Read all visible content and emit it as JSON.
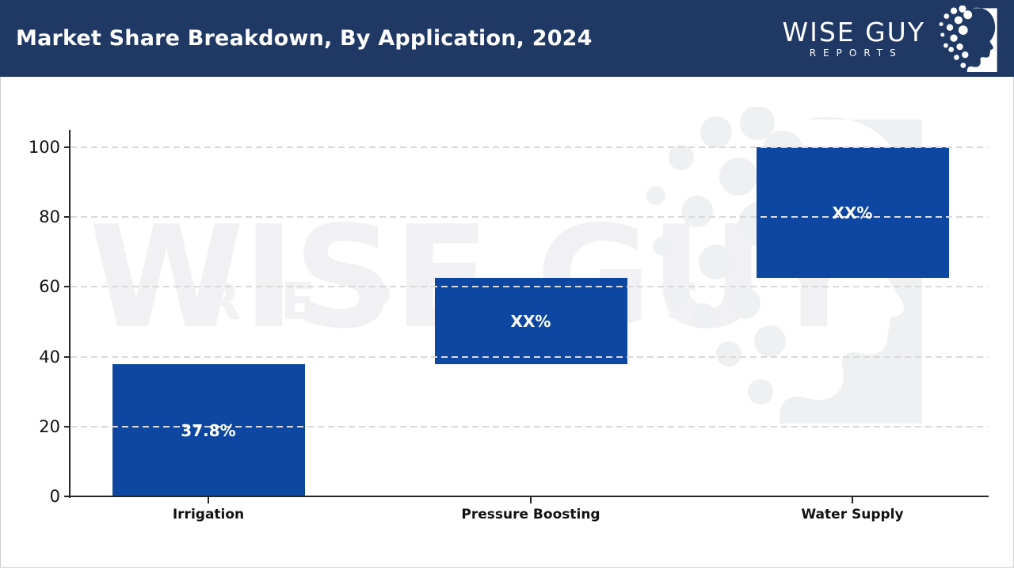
{
  "header": {
    "title": "Market Share Breakdown, By Application, 2024",
    "bg_color": "#1F3864",
    "logo": {
      "line1": "WISE GUY",
      "line2": "REPORTS"
    }
  },
  "watermark": {
    "line1": "WISE GUY",
    "line2": "REPORTS"
  },
  "chart_data": {
    "type": "bar",
    "variant": "waterfall",
    "title": "Market Share Breakdown, By Application, 2024",
    "categories": [
      "Irrigation",
      "Pressure Boosting",
      "Water Supply"
    ],
    "segments": [
      {
        "category": "Irrigation",
        "start": 0,
        "end": 37.8,
        "label": "37.8%"
      },
      {
        "category": "Pressure Boosting",
        "start": 37.8,
        "end": 62.5,
        "label": "XX%"
      },
      {
        "category": "Water Supply",
        "start": 62.5,
        "end": 100,
        "label": "XX%"
      }
    ],
    "yticks": [
      0,
      20,
      40,
      60,
      80,
      100
    ],
    "ylim": [
      0,
      105
    ],
    "xlabel": "",
    "ylabel": "",
    "bar_color": "#0D47A1",
    "grid": "horizontal-dashed",
    "gridline_color": "#d9d9d9",
    "legend": "none"
  }
}
